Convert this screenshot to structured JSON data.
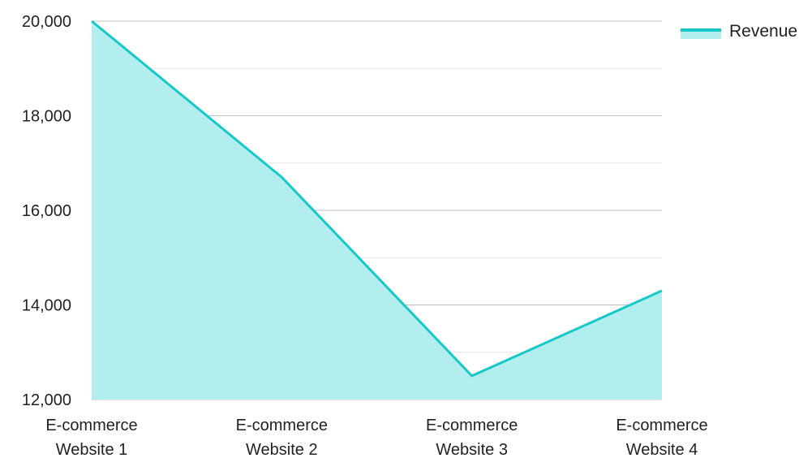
{
  "chart_data": {
    "type": "area",
    "categories": [
      [
        "E-commerce",
        "Website 1"
      ],
      [
        "E-commerce",
        "Website 2"
      ],
      [
        "E-commerce",
        "Website 3"
      ],
      [
        "E-commerce",
        "Website 4"
      ]
    ],
    "series": [
      {
        "name": "Revenue",
        "values": [
          20000,
          16700,
          12500,
          14300
        ]
      }
    ],
    "ylim": [
      12000,
      20000
    ],
    "yticks": [
      "12,000",
      "14,000",
      "16,000",
      "18,000",
      "20,000"
    ],
    "ytick_values": [
      12000,
      14000,
      16000,
      18000,
      20000
    ],
    "grid": true,
    "legend_position": "top-right",
    "colors": {
      "line": "#17c8c8",
      "fill": "#b2eeee",
      "grid_major": "#bfbfbf",
      "grid_minor": "#e6e6e6"
    }
  }
}
